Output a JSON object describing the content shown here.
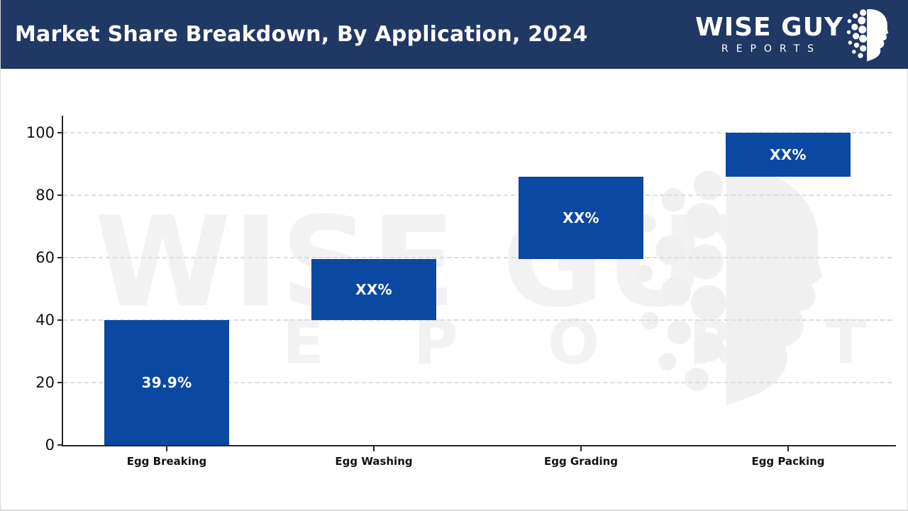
{
  "header": {
    "title": "Market Share Breakdown, By Application, 2024",
    "background": "#1f3864",
    "logo": {
      "line1": "WISE GUY",
      "line2": "REPORTS"
    }
  },
  "watermark": {
    "line1": "WISE GUY",
    "line2": "R E P O R T S"
  },
  "chart_data": {
    "type": "bar",
    "subtype": "waterfall",
    "title": "Market Share Breakdown, By Application, 2024",
    "categories": [
      "Egg Breaking",
      "Egg Washing",
      "Egg Grading",
      "Egg Packing"
    ],
    "series": [
      {
        "name": "Market share by application (%)",
        "segments": [
          {
            "start": 0,
            "end": 39.9
          },
          {
            "start": 40,
            "end": 59.5
          },
          {
            "start": 59.5,
            "end": 85.9
          },
          {
            "start": 86,
            "end": 100
          }
        ]
      }
    ],
    "bar_labels": [
      "39.9%",
      "XX%",
      "XX%",
      "XX%"
    ],
    "xlabel": "",
    "ylabel": "",
    "ylim": [
      0,
      105.5
    ],
    "yticks": [
      0,
      20,
      40,
      60,
      80,
      100
    ],
    "grid": "horizontal-dashed",
    "legend": "none",
    "bar_color": "#0b48a1",
    "bar_label_color": "#ffffff",
    "gridline_color": "#dcdcdc",
    "axis_color": "#262626",
    "tick_label_color": "#111111"
  }
}
